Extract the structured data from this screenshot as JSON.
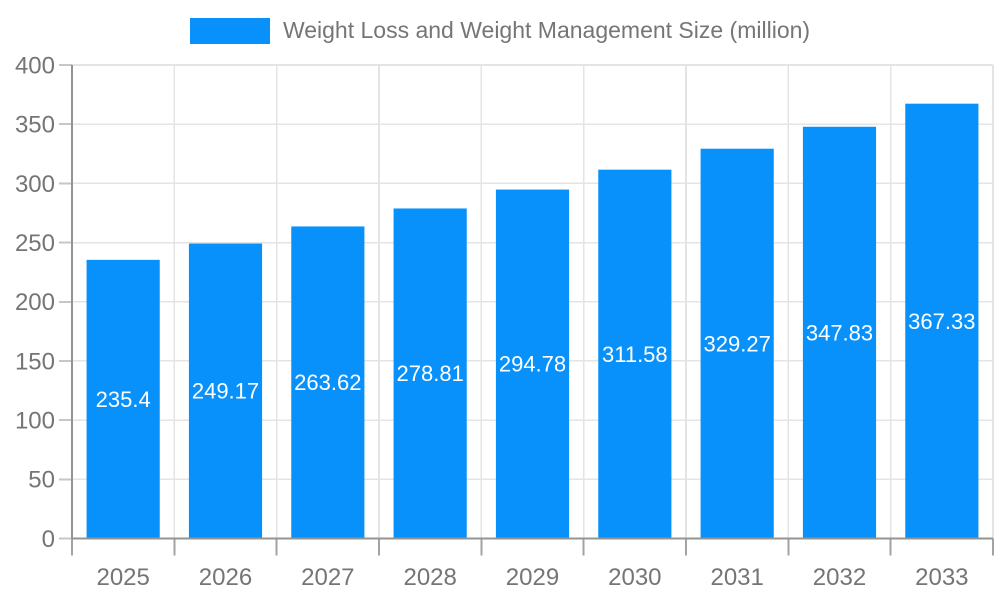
{
  "chart_data": {
    "type": "bar",
    "title": "Weight Loss and Weight Management Size (million)",
    "legend": {
      "position": "top-center",
      "label": "Weight Loss and Weight Management Size (million)"
    },
    "categories": [
      "2025",
      "2026",
      "2027",
      "2028",
      "2029",
      "2030",
      "2031",
      "2032",
      "2033"
    ],
    "values": [
      235.4,
      249.17,
      263.62,
      278.81,
      294.78,
      311.58,
      329.27,
      347.83,
      367.33
    ],
    "value_labels": [
      "235.4",
      "249.17",
      "263.62",
      "278.81",
      "294.78",
      "311.58",
      "329.27",
      "347.83",
      "367.33"
    ],
    "xlabel": "",
    "ylabel": "",
    "ylim": [
      0,
      400
    ],
    "ytick_step": 50,
    "ytick_labels": [
      "0",
      "50",
      "100",
      "150",
      "200",
      "250",
      "300",
      "350",
      "400"
    ],
    "grid": true,
    "colors": {
      "bar": "#0991fb",
      "grid": "#e4e4e4",
      "axis": "#949494",
      "tick_y": "#c7c7c7",
      "tick_x": "#a3a3a3",
      "text": "#757575",
      "value_label": "#ffffff",
      "background": "#ffffff"
    }
  }
}
